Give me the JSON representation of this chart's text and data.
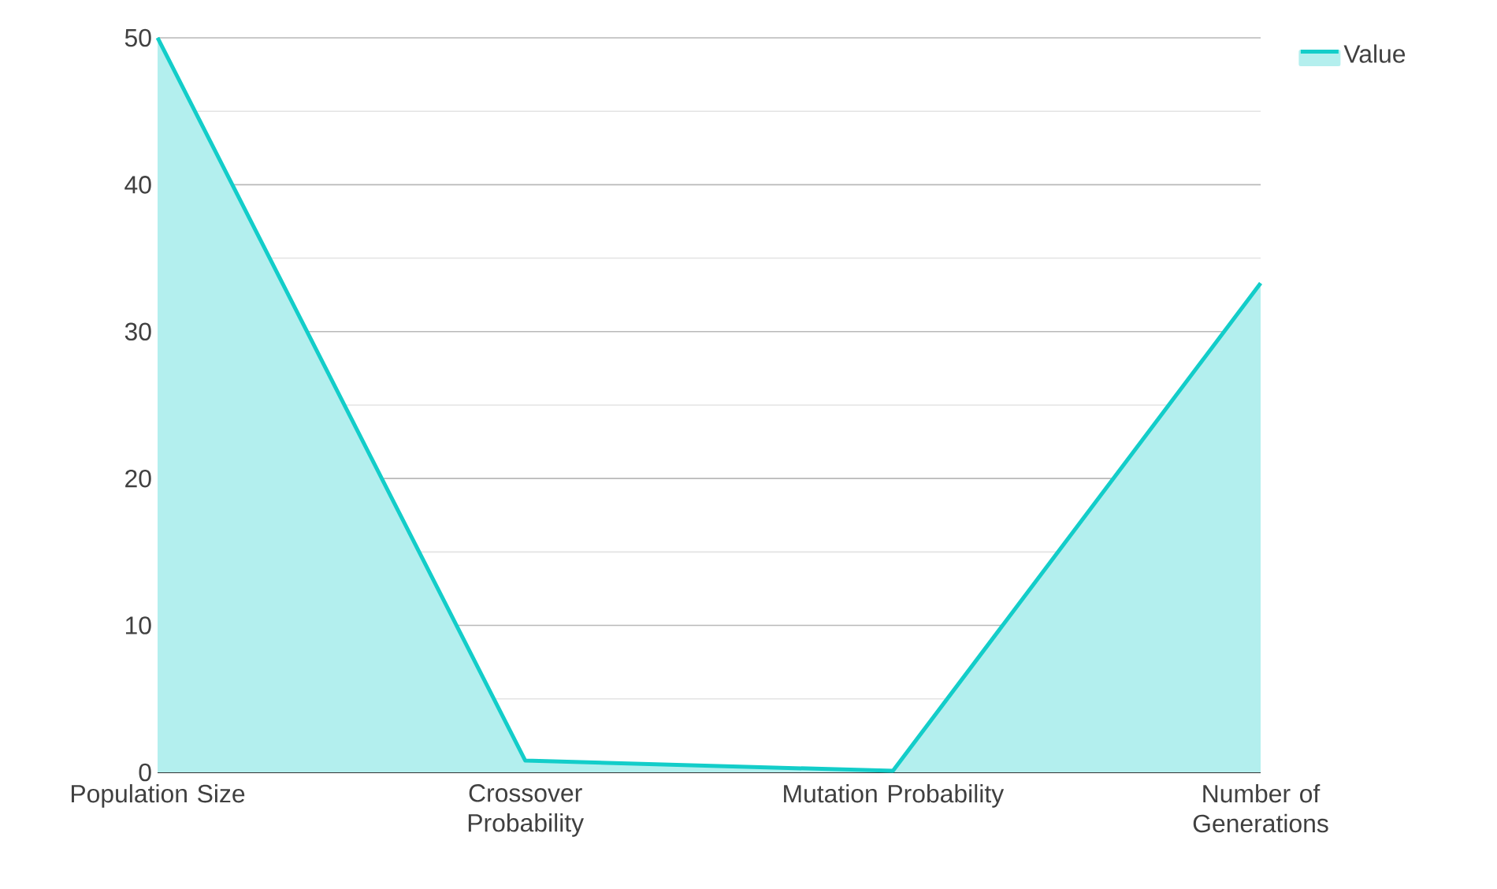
{
  "chart_data": {
    "type": "area",
    "categories": [
      "Population Size",
      "Crossover Probability",
      "Mutation Probability",
      "Number of Generations"
    ],
    "series": [
      {
        "name": "Value",
        "color": "#13cdc9",
        "values": [
          50,
          0.8,
          0.1,
          33.3
        ]
      }
    ],
    "ylim": [
      0,
      50
    ],
    "yticks": [
      0,
      10,
      20,
      30,
      40,
      50
    ],
    "grid": "y",
    "legend": "top right"
  }
}
